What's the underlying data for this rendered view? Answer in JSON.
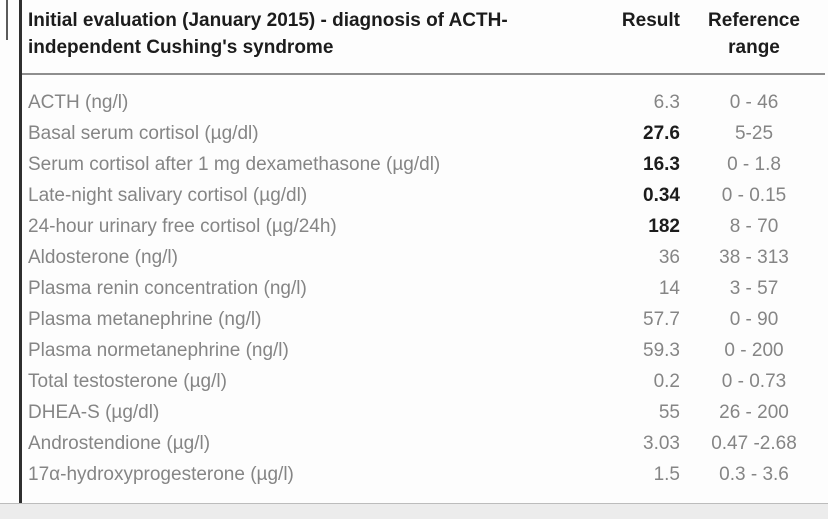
{
  "table": {
    "header": {
      "title": "Initial evaluation (January 2015) - diagnosis of ACTH-independent Cushing's syndrome",
      "col_result": "Result",
      "col_reference": "Reference range"
    },
    "rows": [
      {
        "label": "ACTH (ng/l)",
        "result": "6.3",
        "reference": "0 - 46",
        "bold": false
      },
      {
        "label": "Basal serum cortisol (µg/dl)",
        "result": "27.6",
        "reference": "5-25",
        "bold": true
      },
      {
        "label": "Serum cortisol after 1 mg dexamethasone (µg/dl)",
        "result": "16.3",
        "reference": "0 - 1.8",
        "bold": true
      },
      {
        "label": "Late-night salivary cortisol (µg/dl)",
        "result": "0.34",
        "reference": "0 - 0.15",
        "bold": true
      },
      {
        "label": "24-hour urinary free cortisol (µg/24h)",
        "result": "182",
        "reference": "8 - 70",
        "bold": true
      },
      {
        "label": "Aldosterone (ng/l)",
        "result": "36",
        "reference": "38 - 313",
        "bold": false
      },
      {
        "label": "Plasma renin concentration (ng/l)",
        "result": "14",
        "reference": "3 - 57",
        "bold": false
      },
      {
        "label": "Plasma metanephrine (ng/l)",
        "result": "57.7",
        "reference": "0 - 90",
        "bold": false
      },
      {
        "label": "Plasma normetanephrine (ng/l)",
        "result": "59.3",
        "reference": "0 - 200",
        "bold": false
      },
      {
        "label": "Total testosterone (µg/l)",
        "result": "0.2",
        "reference": "0 - 0.73",
        "bold": false
      },
      {
        "label": "DHEA-S (µg/dl)",
        "result": "55",
        "reference": "26 - 200",
        "bold": false
      },
      {
        "label": "Androstendione (µg/l)",
        "result": "3.03",
        "reference": "0.47 -2.68",
        "bold": false
      },
      {
        "label": "17α-hydroxyprogesterone (µg/l)",
        "result": "1.5",
        "reference": "0.3 - 3.6",
        "bold": false
      }
    ]
  },
  "colors": {
    "background": "#fdfdfd",
    "border_dark": "#2f2f2f",
    "header_text": "#1c1c1c",
    "body_text": "#858585",
    "bold_result_text": "#1c1c1c",
    "separator": "#8e8e8e",
    "bottom_band": "#ececec"
  }
}
